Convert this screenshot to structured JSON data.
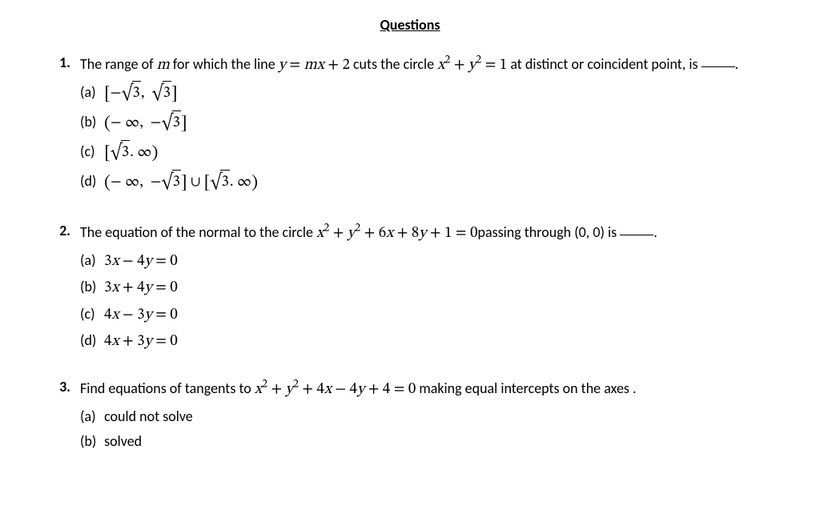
{
  "title": "Questions",
  "questions": [
    {
      "num": "1.",
      "stem_pre": "The range of ",
      "stem_var1": "m",
      "stem_mid1": " for which the line ",
      "stem_eq1": "y = mx + 2",
      "stem_mid2": " cuts the circle ",
      "stem_eq2": "x² + y² = 1",
      "stem_post": " at distinct or coincident point, is ",
      "options": [
        {
          "label": "(a)",
          "math": "[−√3, √3]"
        },
        {
          "label": "(b)",
          "math": "(−∞, −√3]"
        },
        {
          "label": "(c)",
          "math": "[√3. ∞)"
        },
        {
          "label": "(d)",
          "math": "(−∞, −√3] ∪ [√3. ∞)"
        }
      ]
    },
    {
      "num": "2.",
      "stem_pre": "The equation of the normal to the circle ",
      "stem_eq1": "x² + y² + 6x + 8y + 1 = 0",
      "stem_mid1": "passing through (0, 0) is ",
      "options": [
        {
          "label": "(a)",
          "math": "3x − 4y = 0"
        },
        {
          "label": "(b)",
          "math": "3x + 4y = 0"
        },
        {
          "label": "(c)",
          "math": "4x − 3y = 0"
        },
        {
          "label": "(d)",
          "math": "4x + 3y = 0"
        }
      ]
    },
    {
      "num": "3.",
      "stem_pre": "Find equations of tangents to ",
      "stem_eq1": "x² + y² + 4x − 4y + 4 = 0",
      "stem_post": " making equal intercepts on the axes .",
      "options": [
        {
          "label": "(a)",
          "text": "could not solve"
        },
        {
          "label": "(b)",
          "text": "solved"
        }
      ]
    }
  ]
}
